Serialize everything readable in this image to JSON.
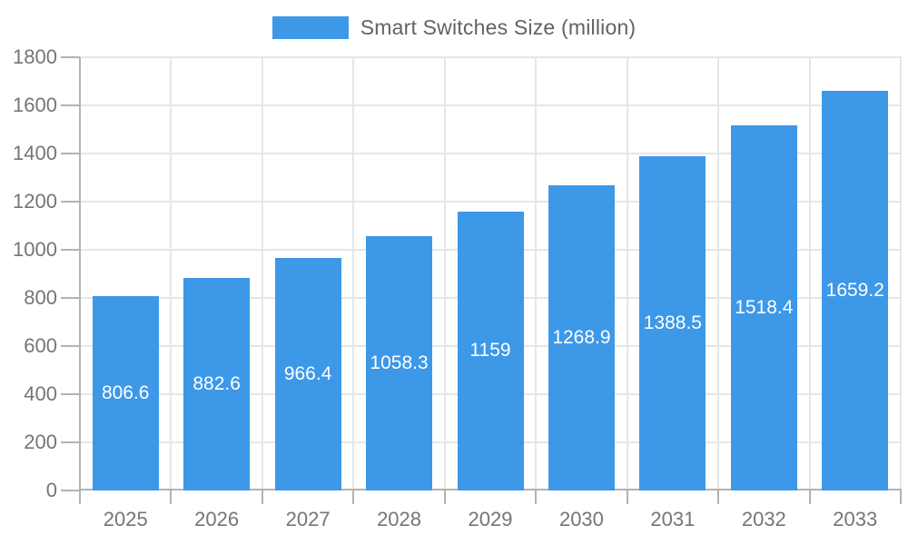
{
  "chart_data": {
    "type": "bar",
    "title": "Smart Switches Size (million)",
    "categories": [
      "2025",
      "2026",
      "2027",
      "2028",
      "2029",
      "2030",
      "2031",
      "2032",
      "2033"
    ],
    "values": [
      806.6,
      882.6,
      966.4,
      1058.3,
      1159,
      1268.9,
      1388.5,
      1518.4,
      1659.2
    ],
    "value_labels": [
      "806.6",
      "882.6",
      "966.4",
      "1058.3",
      "1159",
      "1268.9",
      "1388.5",
      "1518.4",
      "1659.2"
    ],
    "xlabel": "",
    "ylabel": "",
    "ylim": [
      0,
      1800
    ],
    "ytick_step": 200,
    "yticks": [
      0,
      200,
      400,
      600,
      800,
      1000,
      1200,
      1400,
      1600,
      1800
    ],
    "grid": true,
    "legend_position": "top-center",
    "bar_label_position": "inside-center"
  },
  "colors": {
    "bar": "#3D98E8",
    "bar_value_text": "#FFFFFF",
    "axis_text": "#757575",
    "legend_text": "#636363",
    "gridline": "#E6E6E6",
    "axis_line": "#B3B3B3",
    "background": "#FFFFFF"
  }
}
